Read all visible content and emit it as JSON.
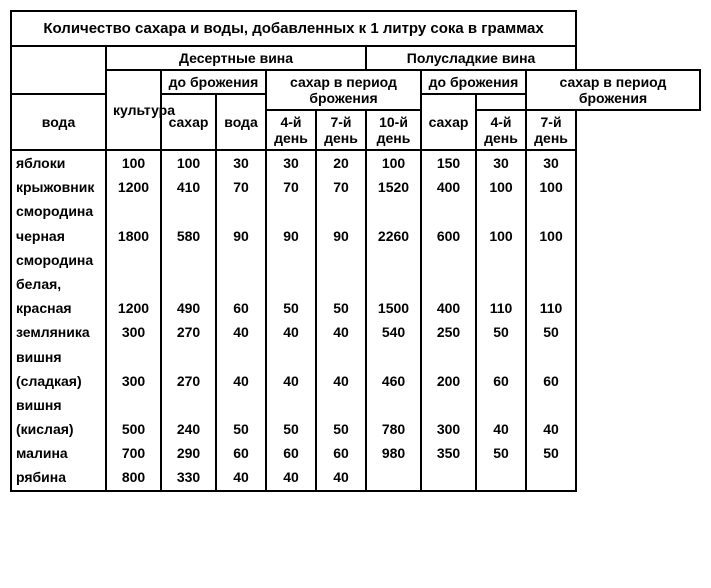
{
  "title": "Количество сахара и воды, добавленных к 1 литру сока в граммах",
  "groups": {
    "dessert": "Десертные вина",
    "semisweet": "Полусладкие вина"
  },
  "headers": {
    "culture": "культура",
    "before_ferment": "до брожения",
    "sugar_period": "сахар в период брожения",
    "water": "вода",
    "sugar": "сахар",
    "day4": "4-й день",
    "day7": "7-й день",
    "day10": "10-й день"
  },
  "rows": [
    {
      "label": "яблоки",
      "d": [
        100,
        100,
        30,
        30,
        20
      ],
      "s": [
        100,
        150,
        30,
        30
      ]
    },
    {
      "label": "крыжовник",
      "d": [
        1200,
        410,
        70,
        70,
        70
      ],
      "s": [
        1520,
        400,
        100,
        100
      ]
    },
    {
      "label": "смородина",
      "cont": true
    },
    {
      "label": "черная",
      "d": [
        1800,
        580,
        90,
        90,
        90
      ],
      "s": [
        2260,
        600,
        100,
        100
      ]
    },
    {
      "label": "смородина",
      "cont": true
    },
    {
      "label": "белая,",
      "cont": true
    },
    {
      "label": "красная",
      "d": [
        1200,
        490,
        60,
        50,
        50
      ],
      "s": [
        1500,
        400,
        110,
        110
      ]
    },
    {
      "label": "земляника",
      "d": [
        300,
        270,
        40,
        40,
        40
      ],
      "s": [
        540,
        250,
        50,
        50
      ]
    },
    {
      "label": "вишня",
      "cont": true
    },
    {
      "label": "(сладкая)",
      "d": [
        300,
        270,
        40,
        40,
        40
      ],
      "s": [
        460,
        200,
        60,
        60
      ]
    },
    {
      "label": "вишня",
      "cont": true
    },
    {
      "label": "(кислая)",
      "d": [
        500,
        240,
        50,
        50,
        50
      ],
      "s": [
        780,
        300,
        40,
        40
      ]
    },
    {
      "label": "малина",
      "d": [
        700,
        290,
        60,
        60,
        60
      ],
      "s": [
        980,
        350,
        50,
        50
      ]
    },
    {
      "label": "рябина",
      "d": [
        800,
        330,
        40,
        40,
        40
      ],
      "s": [
        "",
        "",
        "",
        ""
      ]
    }
  ]
}
